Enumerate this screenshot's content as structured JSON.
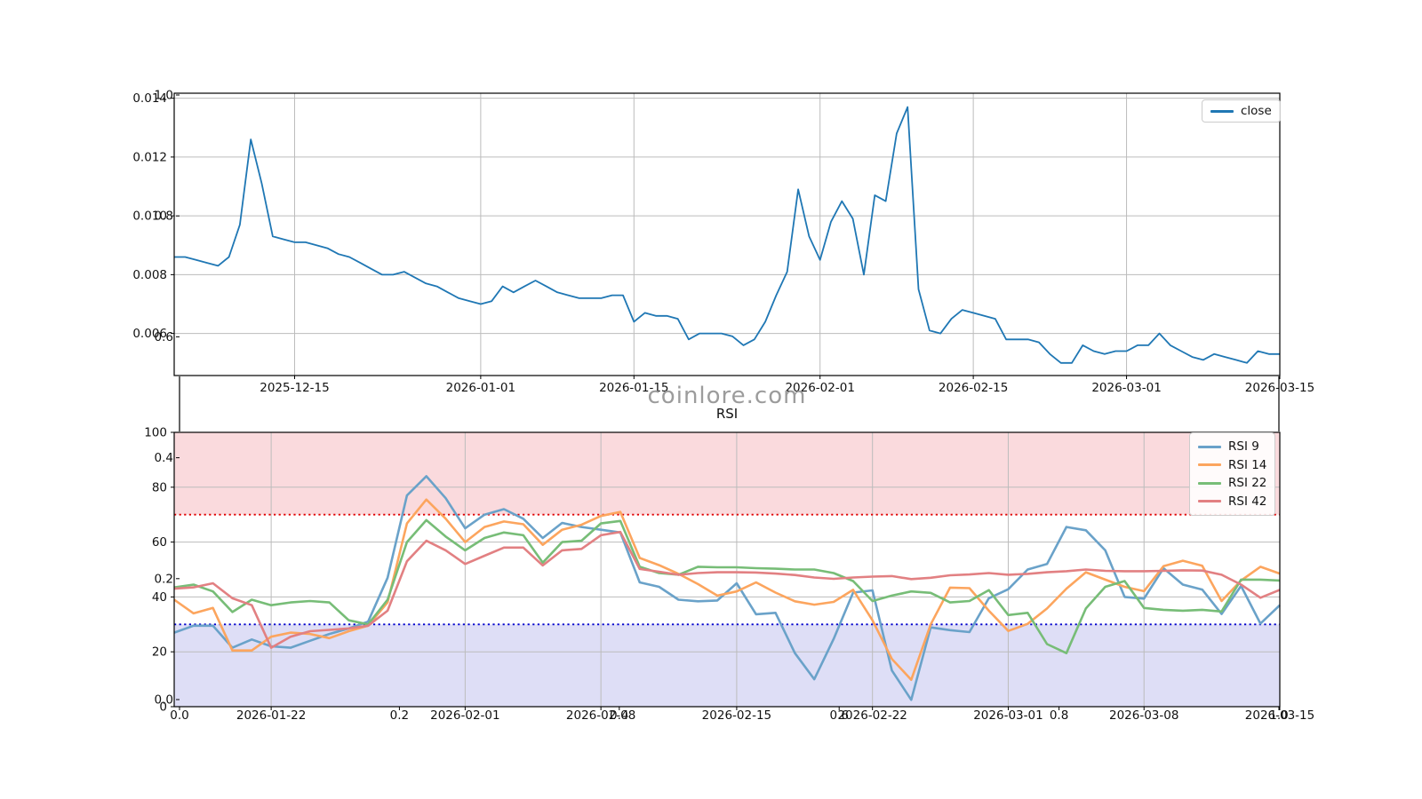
{
  "watermark": "coinlore.com",
  "overlay_axis": {
    "xticks": [
      "0.0",
      "0.2",
      "0.4",
      "0.6",
      "0.8",
      "1.0"
    ],
    "yticks": [
      "0.0",
      "0.2",
      "0.4",
      "0.6",
      "0.8",
      "1.0"
    ]
  },
  "chart_data": [
    {
      "type": "line",
      "name": "price-panel",
      "title": "",
      "x_start": "2025-12-04",
      "x_end": "2026-03-15",
      "ylim": [
        0.00457,
        0.01417
      ],
      "grid": true,
      "legend_position": "upper right",
      "legend": {
        "items": [
          {
            "label": "close",
            "color": "#1f77b4"
          }
        ]
      },
      "yticks": [
        {
          "label": "0.006",
          "value": 0.006
        },
        {
          "label": "0.008",
          "value": 0.008
        },
        {
          "label": "0.010",
          "value": 0.01
        },
        {
          "label": "0.012",
          "value": 0.012
        },
        {
          "label": "0.014",
          "value": 0.014
        }
      ],
      "xticks": [
        {
          "label": "2025-12-15",
          "day": 11
        },
        {
          "label": "2026-01-01",
          "day": 28
        },
        {
          "label": "2026-01-15",
          "day": 42
        },
        {
          "label": "2026-02-01",
          "day": 59
        },
        {
          "label": "2026-02-15",
          "day": 73
        },
        {
          "label": "2026-03-01",
          "day": 87
        },
        {
          "label": "2026-03-15",
          "day": 101
        }
      ],
      "series": [
        {
          "name": "close",
          "color": "#1f77b4",
          "width": 1.8,
          "opacity": 1,
          "values": [
            0.0086,
            0.0086,
            0.0085,
            0.0084,
            0.0083,
            0.0086,
            0.0097,
            0.0126,
            0.0111,
            0.0093,
            0.0092,
            0.0091,
            0.0091,
            0.009,
            0.0089,
            0.0087,
            0.0086,
            0.0084,
            0.0082,
            0.008,
            0.008,
            0.0081,
            0.0079,
            0.0077,
            0.0076,
            0.0074,
            0.0072,
            0.0071,
            0.007,
            0.0071,
            0.0076,
            0.0074,
            0.0076,
            0.0078,
            0.0076,
            0.0074,
            0.0073,
            0.0072,
            0.0072,
            0.0072,
            0.0073,
            0.0073,
            0.0064,
            0.0067,
            0.0066,
            0.0066,
            0.0065,
            0.0058,
            0.006,
            0.006,
            0.006,
            0.0059,
            0.0056,
            0.0058,
            0.0064,
            0.0073,
            0.0081,
            0.0109,
            0.0093,
            0.0085,
            0.0098,
            0.0105,
            0.0099,
            0.008,
            0.0107,
            0.0105,
            0.0128,
            0.0137,
            0.0075,
            0.0061,
            0.006,
            0.0065,
            0.0068,
            0.0067,
            0.0066,
            0.0065,
            0.0058,
            0.0058,
            0.0058,
            0.0057,
            0.0053,
            0.005,
            0.005,
            0.0056,
            0.0054,
            0.0053,
            0.0054,
            0.0054,
            0.0056,
            0.0056,
            0.006,
            0.0056,
            0.0054,
            0.0052,
            0.0051,
            0.0053,
            0.0052,
            0.0051,
            0.005,
            0.0054,
            0.0053,
            0.0053
          ]
        }
      ]
    },
    {
      "type": "line",
      "name": "rsi-panel",
      "title": "RSI",
      "x_start": "2026-01-17",
      "x_end": "2026-03-15",
      "ylim": [
        0,
        100
      ],
      "grid": true,
      "overbought_level": 70,
      "oversold_level": 30,
      "bands": [
        {
          "from": 70,
          "to": 100,
          "color": "#fadadd"
        },
        {
          "from": 0,
          "to": 30,
          "color": "#dedef6"
        }
      ],
      "hlines": [
        {
          "value": 70,
          "color": "#e00000"
        },
        {
          "value": 30,
          "color": "#0000cc"
        }
      ],
      "legend_position": "upper right",
      "legend": {
        "items": [
          {
            "label": "RSI 9",
            "color": "#6aa2c9"
          },
          {
            "label": "RSI 14",
            "color": "#fca55e"
          },
          {
            "label": "RSI 22",
            "color": "#77bd77"
          },
          {
            "label": "RSI 42",
            "color": "#e28082"
          }
        ]
      },
      "yticks": [
        {
          "label": "0",
          "value": 0
        },
        {
          "label": "20",
          "value": 20
        },
        {
          "label": "40",
          "value": 40
        },
        {
          "label": "60",
          "value": 60
        },
        {
          "label": "80",
          "value": 80
        },
        {
          "label": "100",
          "value": 100
        }
      ],
      "xticks": [
        {
          "label": "2026-01-22",
          "day": 5
        },
        {
          "label": "2026-02-01",
          "day": 15
        },
        {
          "label": "2026-02-08",
          "day": 22
        },
        {
          "label": "2026-02-15",
          "day": 29
        },
        {
          "label": "2026-02-22",
          "day": 36
        },
        {
          "label": "2026-03-01",
          "day": 43
        },
        {
          "label": "2026-03-08",
          "day": 50
        },
        {
          "label": "2026-03-15",
          "day": 57
        }
      ],
      "series": [
        {
          "name": "RSI 9",
          "color": "#6aa2c9",
          "width": 2.6,
          "opacity": 1,
          "values": [
            27,
            29.5,
            29.5,
            21.5,
            24.5,
            22,
            21.5,
            24,
            26.5,
            28.5,
            31,
            47,
            77,
            84,
            76,
            65,
            70,
            72,
            68.5,
            61.5,
            67,
            65.5,
            64.5,
            63.5,
            45.3,
            43.7,
            39,
            38.4,
            38.7,
            45,
            33.7,
            34.2,
            19.5,
            10,
            24.7,
            41.6,
            42.4,
            13.2,
            2.5,
            28.9,
            27.9,
            27.2,
            39.5,
            42.8,
            50,
            52,
            65.5,
            64.3,
            57,
            40,
            39.4,
            50.5,
            44.5,
            42.7,
            33.8,
            44,
            30.3,
            37
          ]
        },
        {
          "name": "RSI 14",
          "color": "#fca55e",
          "width": 2.6,
          "opacity": 1,
          "values": [
            39,
            34,
            36,
            20.5,
            20.5,
            25.5,
            27,
            26.5,
            25,
            27.5,
            29.5,
            38,
            66.8,
            75.5,
            68.5,
            60,
            65.5,
            67.5,
            66.5,
            59,
            64.5,
            66.3,
            69.5,
            71,
            54.2,
            51.6,
            48.4,
            44.7,
            40.5,
            42,
            45.3,
            41.6,
            38.4,
            37.2,
            38.2,
            42.6,
            31.5,
            17.4,
            9.8,
            30,
            43.4,
            43.2,
            35,
            27.6,
            30.2,
            35.8,
            43,
            49,
            46.3,
            43.7,
            42.1,
            51.2,
            53.2,
            51.4,
            38.5,
            46,
            51,
            48.5
          ]
        },
        {
          "name": "RSI 22",
          "color": "#77bd77",
          "width": 2.6,
          "opacity": 1,
          "values": [
            43.5,
            44.5,
            42,
            34.5,
            39,
            37,
            38,
            38.5,
            38,
            31.5,
            30,
            39,
            60,
            68,
            62,
            57,
            61.5,
            63.5,
            62.5,
            52.5,
            60,
            60.5,
            66.8,
            67.7,
            51,
            48.7,
            48.1,
            51,
            50.8,
            50.8,
            50.5,
            50.3,
            50,
            50,
            48.7,
            45.8,
            38.5,
            40.5,
            42,
            41.5,
            38,
            38.5,
            42.5,
            33.4,
            34.2,
            22.8,
            19.5,
            35.8,
            43.7,
            45.8,
            36,
            35.3,
            35,
            35.3,
            34.7,
            46.3,
            46.3,
            46
          ]
        },
        {
          "name": "RSI 42",
          "color": "#e28082",
          "width": 2.6,
          "opacity": 1,
          "values": [
            43,
            43.5,
            45,
            39.5,
            37,
            21.5,
            25.5,
            27.5,
            28,
            28.5,
            29.5,
            35,
            53,
            60.5,
            57,
            52,
            55,
            58,
            58,
            51.5,
            57,
            57.5,
            62.5,
            63.7,
            50.2,
            49.2,
            48.1,
            48.7,
            49,
            49,
            48.9,
            48.5,
            48,
            47.1,
            46.6,
            47.1,
            47.4,
            47.6,
            46.5,
            47,
            47.9,
            48.2,
            48.7,
            48.1,
            48.4,
            49,
            49.4,
            50,
            49.5,
            49.4,
            49.4,
            49.5,
            49.7,
            49.6,
            48.1,
            44.5,
            39.7,
            42.6
          ]
        }
      ]
    }
  ]
}
